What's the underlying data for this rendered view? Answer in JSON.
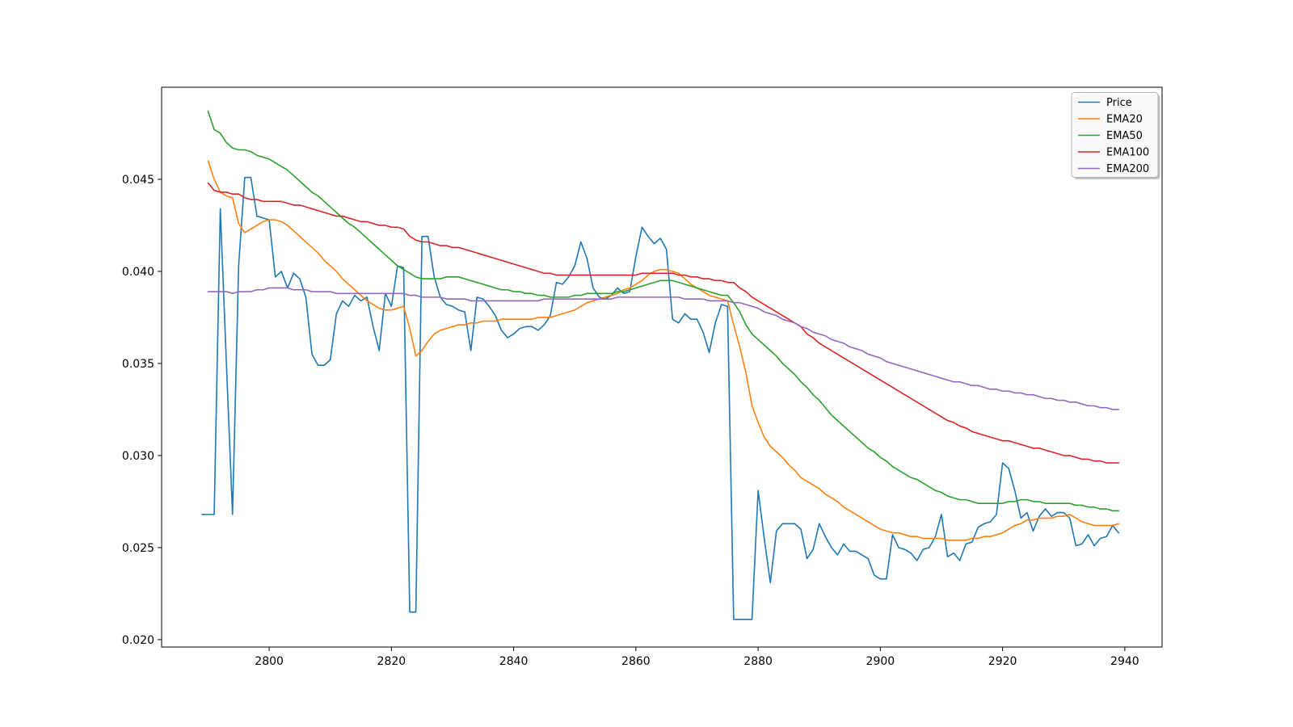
{
  "figure": {
    "background": "#ffffff",
    "axes_edge_color": "#000000"
  },
  "legend": {
    "entries": [
      "Price",
      "EMA20",
      "EMA50",
      "EMA100",
      "EMA200"
    ],
    "position": "upper right",
    "frame_color": "#b0b0b0",
    "frame_fill": "#ffffff",
    "shadow_color": "#999999"
  },
  "chart_data": {
    "type": "line",
    "title": "",
    "xlabel": "",
    "ylabel": "",
    "grid": false,
    "xlim": [
      2782.4,
      2946.1
    ],
    "ylim": [
      0.0196,
      0.05
    ],
    "legend_position": "upper right",
    "x_ticks": [
      {
        "v": 2800,
        "label": "2800"
      },
      {
        "v": 2820,
        "label": "2820"
      },
      {
        "v": 2840,
        "label": "2840"
      },
      {
        "v": 2860,
        "label": "2860"
      },
      {
        "v": 2880,
        "label": "2880"
      },
      {
        "v": 2900,
        "label": "2900"
      },
      {
        "v": 2920,
        "label": "2920"
      },
      {
        "v": 2940,
        "label": "2940"
      }
    ],
    "y_ticks": [
      {
        "v": 0.02,
        "label": "0.020"
      },
      {
        "v": 0.025,
        "label": "0.025"
      },
      {
        "v": 0.03,
        "label": "0.030"
      },
      {
        "v": 0.035,
        "label": "0.035"
      },
      {
        "v": 0.04,
        "label": "0.040"
      },
      {
        "v": 0.045,
        "label": "0.045"
      }
    ],
    "series": [
      {
        "name": "Price",
        "color": "#1f77b4",
        "x_start": 2789,
        "x_step": 1,
        "values": [
          0.0268,
          0.0268,
          0.0268,
          0.0434,
          0.035,
          0.0268,
          0.0403,
          0.0451,
          0.0451,
          0.043,
          0.0429,
          0.0428,
          0.0397,
          0.04,
          0.0391,
          0.0399,
          0.0396,
          0.0386,
          0.0355,
          0.0349,
          0.0349,
          0.0352,
          0.0377,
          0.0384,
          0.0381,
          0.0387,
          0.0384,
          0.0386,
          0.037,
          0.0357,
          0.0388,
          0.0381,
          0.0403,
          0.0402,
          0.0215,
          0.0215,
          0.0419,
          0.0419,
          0.0397,
          0.0386,
          0.0382,
          0.0381,
          0.0379,
          0.0378,
          0.0357,
          0.0386,
          0.0385,
          0.0381,
          0.0376,
          0.0368,
          0.0364,
          0.0366,
          0.0369,
          0.037,
          0.037,
          0.0368,
          0.0371,
          0.0376,
          0.0394,
          0.0393,
          0.0397,
          0.0403,
          0.0416,
          0.0407,
          0.0391,
          0.0386,
          0.0385,
          0.0387,
          0.0391,
          0.0388,
          0.0389,
          0.0408,
          0.0424,
          0.0419,
          0.0415,
          0.0418,
          0.0412,
          0.0374,
          0.0372,
          0.0377,
          0.0374,
          0.0374,
          0.0367,
          0.0356,
          0.0372,
          0.0382,
          0.0381,
          0.0211,
          0.0211,
          0.0211,
          0.0211,
          0.0281,
          0.0255,
          0.0231,
          0.0259,
          0.0263,
          0.0263,
          0.0263,
          0.026,
          0.0244,
          0.0249,
          0.0263,
          0.0256,
          0.025,
          0.0246,
          0.0252,
          0.0248,
          0.0248,
          0.0246,
          0.0244,
          0.0235,
          0.0233,
          0.0233,
          0.0257,
          0.025,
          0.0249,
          0.0247,
          0.0243,
          0.0249,
          0.025,
          0.0256,
          0.0268,
          0.0245,
          0.0247,
          0.0243,
          0.0252,
          0.0253,
          0.0261,
          0.0263,
          0.0264,
          0.0268,
          0.0296,
          0.0293,
          0.0281,
          0.0266,
          0.0269,
          0.0259,
          0.0267,
          0.0271,
          0.0267,
          0.0269,
          0.0269,
          0.0266,
          0.0251,
          0.0252,
          0.0257,
          0.0251,
          0.0255,
          0.0256,
          0.0262,
          0.0258
        ]
      },
      {
        "name": "EMA20",
        "color": "#ff7f0e",
        "x_start": 2790,
        "x_step": 1,
        "values": [
          0.046,
          0.045,
          0.0443,
          0.0441,
          0.044,
          0.0426,
          0.0421,
          0.0423,
          0.0425,
          0.0427,
          0.0428,
          0.0428,
          0.0427,
          0.0425,
          0.0422,
          0.0419,
          0.0416,
          0.0413,
          0.041,
          0.0406,
          0.0403,
          0.04,
          0.0396,
          0.0393,
          0.039,
          0.0387,
          0.0384,
          0.0382,
          0.038,
          0.0379,
          0.0379,
          0.038,
          0.0381,
          0.0369,
          0.0354,
          0.0357,
          0.0362,
          0.0366,
          0.0368,
          0.0369,
          0.037,
          0.0371,
          0.0371,
          0.0372,
          0.0372,
          0.0373,
          0.0373,
          0.0373,
          0.0374,
          0.0374,
          0.0374,
          0.0374,
          0.0374,
          0.0374,
          0.0375,
          0.0375,
          0.0375,
          0.0376,
          0.0377,
          0.0378,
          0.0379,
          0.0381,
          0.0383,
          0.0384,
          0.0385,
          0.0386,
          0.0387,
          0.0388,
          0.039,
          0.0391,
          0.0393,
          0.0395,
          0.0398,
          0.04,
          0.0401,
          0.0401,
          0.04,
          0.0399,
          0.0396,
          0.0393,
          0.0391,
          0.0389,
          0.0387,
          0.0386,
          0.0385,
          0.0384,
          0.0371,
          0.0359,
          0.0345,
          0.0327,
          0.0318,
          0.031,
          0.0305,
          0.0302,
          0.0299,
          0.0295,
          0.0292,
          0.0288,
          0.0286,
          0.0284,
          0.0282,
          0.0279,
          0.0277,
          0.0275,
          0.0272,
          0.027,
          0.0268,
          0.0266,
          0.0264,
          0.0262,
          0.026,
          0.0259,
          0.0258,
          0.0258,
          0.0257,
          0.0256,
          0.0256,
          0.0255,
          0.0255,
          0.0255,
          0.0255,
          0.0254,
          0.0254,
          0.0254,
          0.0254,
          0.0255,
          0.0255,
          0.0256,
          0.0256,
          0.0257,
          0.0258,
          0.026,
          0.0262,
          0.0263,
          0.0265,
          0.0265,
          0.0266,
          0.0266,
          0.0266,
          0.0267,
          0.0267,
          0.0268,
          0.0266,
          0.0264,
          0.0263,
          0.0262,
          0.0262,
          0.0262,
          0.0262,
          0.0263
        ]
      },
      {
        "name": "EMA50",
        "color": "#2ca02c",
        "x_start": 2790,
        "x_step": 1,
        "values": [
          0.0487,
          0.0477,
          0.0475,
          0.047,
          0.0467,
          0.0466,
          0.0466,
          0.0465,
          0.0463,
          0.0462,
          0.0461,
          0.0459,
          0.0457,
          0.0455,
          0.0452,
          0.0449,
          0.0446,
          0.0443,
          0.0441,
          0.0438,
          0.0435,
          0.0432,
          0.0429,
          0.0426,
          0.0424,
          0.0421,
          0.0418,
          0.0415,
          0.0412,
          0.0409,
          0.0406,
          0.0403,
          0.0401,
          0.0399,
          0.0397,
          0.0396,
          0.0396,
          0.0396,
          0.0396,
          0.0397,
          0.0397,
          0.0397,
          0.0396,
          0.0395,
          0.0394,
          0.0393,
          0.0392,
          0.0391,
          0.039,
          0.039,
          0.0389,
          0.0389,
          0.0388,
          0.0388,
          0.0387,
          0.0387,
          0.0386,
          0.0386,
          0.0386,
          0.0386,
          0.0387,
          0.0387,
          0.0388,
          0.0388,
          0.0388,
          0.0388,
          0.0388,
          0.0389,
          0.0389,
          0.039,
          0.0391,
          0.0392,
          0.0393,
          0.0394,
          0.0395,
          0.0395,
          0.0395,
          0.0394,
          0.0393,
          0.0392,
          0.0391,
          0.039,
          0.0389,
          0.0388,
          0.0387,
          0.0387,
          0.0383,
          0.0378,
          0.0371,
          0.0366,
          0.0363,
          0.036,
          0.0357,
          0.0354,
          0.035,
          0.0347,
          0.0344,
          0.034,
          0.0337,
          0.0333,
          0.033,
          0.0326,
          0.0322,
          0.0319,
          0.0316,
          0.0313,
          0.031,
          0.0307,
          0.0304,
          0.0302,
          0.0299,
          0.0297,
          0.0294,
          0.0292,
          0.029,
          0.0288,
          0.0287,
          0.0285,
          0.0283,
          0.0281,
          0.028,
          0.0278,
          0.0277,
          0.0276,
          0.0276,
          0.0275,
          0.0274,
          0.0274,
          0.0274,
          0.0274,
          0.0274,
          0.0275,
          0.0275,
          0.0276,
          0.0276,
          0.0275,
          0.0275,
          0.0274,
          0.0274,
          0.0274,
          0.0274,
          0.0274,
          0.0273,
          0.0273,
          0.0272,
          0.0272,
          0.0271,
          0.0271,
          0.027,
          0.027
        ]
      },
      {
        "name": "EMA100",
        "color": "#d62728",
        "x_start": 2790,
        "x_step": 1,
        "values": [
          0.0448,
          0.0444,
          0.0443,
          0.0443,
          0.0442,
          0.0442,
          0.044,
          0.0439,
          0.0439,
          0.0438,
          0.0438,
          0.0438,
          0.0438,
          0.0437,
          0.0436,
          0.0436,
          0.0435,
          0.0434,
          0.0433,
          0.0432,
          0.0431,
          0.043,
          0.043,
          0.0429,
          0.0428,
          0.0427,
          0.0427,
          0.0426,
          0.0425,
          0.0425,
          0.0424,
          0.0424,
          0.0423,
          0.0419,
          0.0417,
          0.0416,
          0.0416,
          0.0415,
          0.0414,
          0.0414,
          0.0413,
          0.0413,
          0.0412,
          0.0411,
          0.041,
          0.0409,
          0.0408,
          0.0407,
          0.0406,
          0.0405,
          0.0404,
          0.0403,
          0.0402,
          0.0401,
          0.04,
          0.0399,
          0.0399,
          0.0398,
          0.0398,
          0.0398,
          0.0398,
          0.0398,
          0.0398,
          0.0398,
          0.0398,
          0.0398,
          0.0398,
          0.0398,
          0.0398,
          0.0398,
          0.0398,
          0.0399,
          0.0399,
          0.0399,
          0.0399,
          0.0399,
          0.0399,
          0.0398,
          0.0398,
          0.0397,
          0.0397,
          0.0396,
          0.0396,
          0.0395,
          0.0395,
          0.0394,
          0.0394,
          0.0391,
          0.0389,
          0.0386,
          0.0384,
          0.0382,
          0.038,
          0.0378,
          0.0376,
          0.0374,
          0.0372,
          0.037,
          0.0366,
          0.0364,
          0.0361,
          0.0359,
          0.0357,
          0.0355,
          0.0353,
          0.0351,
          0.0349,
          0.0347,
          0.0345,
          0.0343,
          0.0341,
          0.0339,
          0.0337,
          0.0335,
          0.0333,
          0.0331,
          0.0329,
          0.0327,
          0.0325,
          0.0323,
          0.0321,
          0.0319,
          0.0318,
          0.0316,
          0.0315,
          0.0313,
          0.0312,
          0.0311,
          0.031,
          0.0309,
          0.0308,
          0.0308,
          0.0307,
          0.0306,
          0.0305,
          0.0304,
          0.0304,
          0.0303,
          0.0302,
          0.0301,
          0.03,
          0.03,
          0.0299,
          0.0298,
          0.0298,
          0.0297,
          0.0297,
          0.0296,
          0.0296,
          0.0296
        ]
      },
      {
        "name": "EMA200",
        "color": "#9467bd",
        "x_start": 2790,
        "x_step": 1,
        "values": [
          0.0389,
          0.0389,
          0.0389,
          0.0389,
          0.0388,
          0.0389,
          0.0389,
          0.0389,
          0.039,
          0.039,
          0.0391,
          0.0391,
          0.0391,
          0.0391,
          0.039,
          0.039,
          0.039,
          0.0389,
          0.0389,
          0.0389,
          0.0389,
          0.0388,
          0.0388,
          0.0388,
          0.0388,
          0.0388,
          0.0388,
          0.0388,
          0.0388,
          0.0388,
          0.0388,
          0.0388,
          0.0388,
          0.0387,
          0.0387,
          0.0386,
          0.0386,
          0.0386,
          0.0386,
          0.0385,
          0.0385,
          0.0385,
          0.0385,
          0.0384,
          0.0384,
          0.0384,
          0.0384,
          0.0384,
          0.0384,
          0.0384,
          0.0384,
          0.0384,
          0.0384,
          0.0384,
          0.0384,
          0.0385,
          0.0385,
          0.0385,
          0.0385,
          0.0385,
          0.0385,
          0.0385,
          0.0385,
          0.0385,
          0.0385,
          0.0385,
          0.0385,
          0.0386,
          0.0386,
          0.0386,
          0.0386,
          0.0386,
          0.0386,
          0.0386,
          0.0386,
          0.0386,
          0.0386,
          0.0386,
          0.0385,
          0.0385,
          0.0385,
          0.0385,
          0.0384,
          0.0384,
          0.0384,
          0.0384,
          0.0383,
          0.0383,
          0.0382,
          0.0381,
          0.038,
          0.0378,
          0.0377,
          0.0376,
          0.0374,
          0.0373,
          0.0372,
          0.037,
          0.0369,
          0.0367,
          0.0366,
          0.0365,
          0.0363,
          0.0362,
          0.0361,
          0.0359,
          0.0358,
          0.0357,
          0.0355,
          0.0354,
          0.0353,
          0.0351,
          0.035,
          0.0349,
          0.0348,
          0.0347,
          0.0346,
          0.0345,
          0.0344,
          0.0343,
          0.0342,
          0.0341,
          0.034,
          0.034,
          0.0339,
          0.0338,
          0.0338,
          0.0337,
          0.0336,
          0.0336,
          0.0335,
          0.0335,
          0.0334,
          0.0334,
          0.0333,
          0.0333,
          0.0332,
          0.0331,
          0.0331,
          0.033,
          0.033,
          0.0329,
          0.0329,
          0.0328,
          0.0327,
          0.0327,
          0.0326,
          0.0326,
          0.0325,
          0.0325
        ]
      }
    ]
  }
}
